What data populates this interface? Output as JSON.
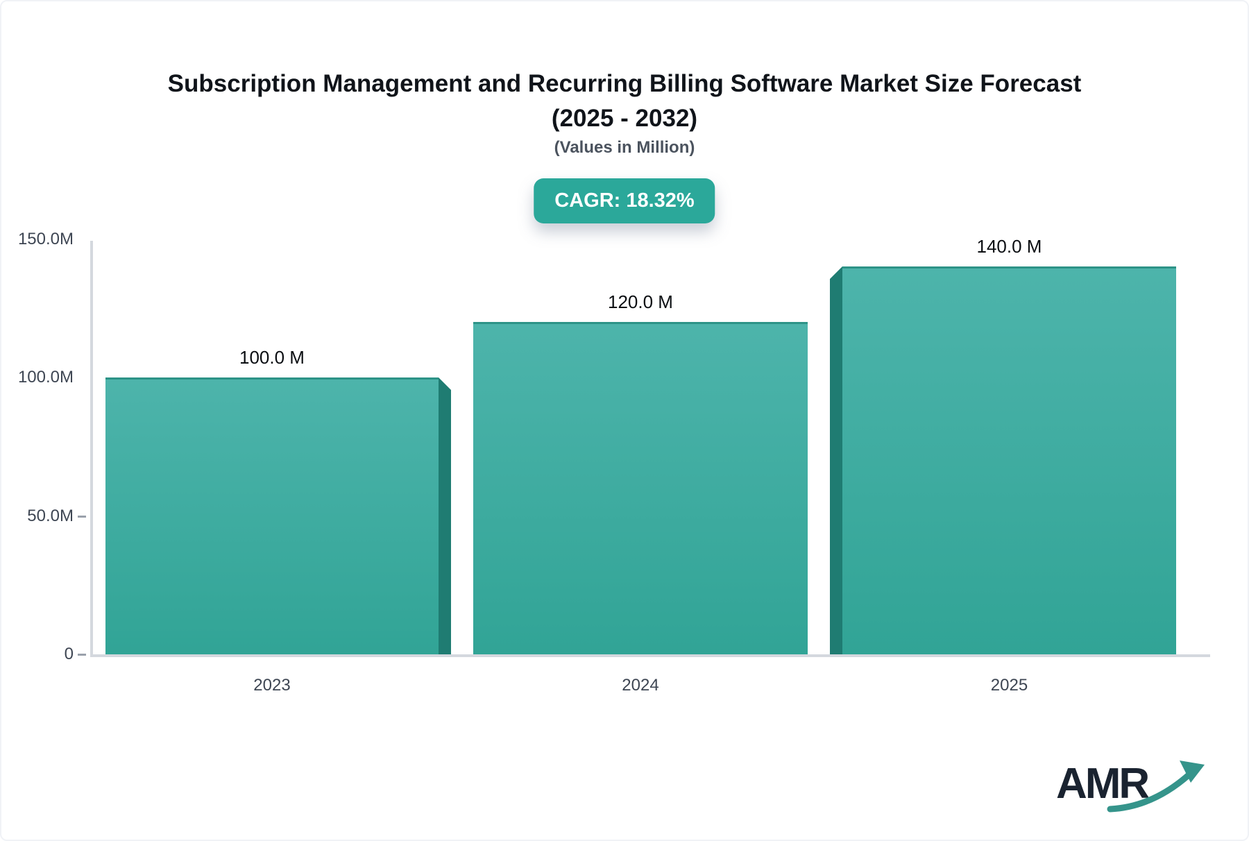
{
  "title": {
    "line1": "Subscription Management and Recurring Billing Software Market Size Forecast",
    "line2": "(2025 - 2032)",
    "subtitle": "(Values in Million)"
  },
  "badge": {
    "label": "CAGR: 18.32%",
    "bg_color": "#2ba89a"
  },
  "chart_data": {
    "type": "bar",
    "title": "Subscription Management and Recurring Billing Software Market Size Forecast (2025 - 2032)",
    "subtitle": "(Values in Million)",
    "unit": "Million",
    "categories": [
      "2023",
      "2024",
      "2025"
    ],
    "values": [
      100.0,
      120.0,
      140.0
    ],
    "bar_labels": [
      "100.0 M",
      "120.0 M",
      "140.0 M"
    ],
    "cagr_percent": 18.32,
    "ylim": [
      0,
      150
    ],
    "yticks": [
      {
        "label": "150.0M",
        "value": 150,
        "dash": false
      },
      {
        "label": "100.0M",
        "value": 100,
        "dash": false
      },
      {
        "label": "50.0M",
        "value": 50,
        "dash": true
      },
      {
        "label": "0",
        "value": 0,
        "dash": true
      }
    ],
    "grid": false,
    "legend": "none",
    "bar_color_top": "#4db4ab",
    "bar_color_bottom": "#31a496",
    "bevel_color": "#1f7c72",
    "axis_color": "#d4d8de"
  },
  "logo": {
    "text": "AMR",
    "arrow_color": "#35948b",
    "text_color": "#1a2330"
  }
}
